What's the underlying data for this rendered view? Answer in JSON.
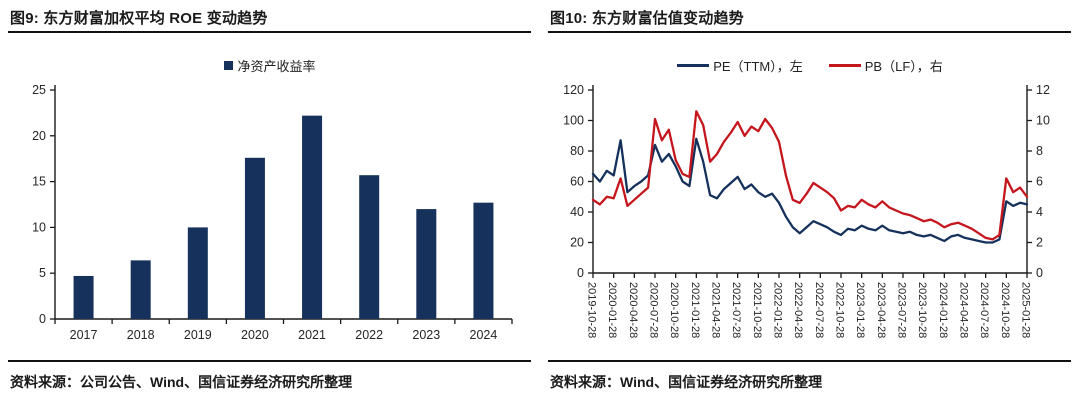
{
  "panels": [
    {
      "title": "图9: 东方财富加权平均 ROE 变动趋势",
      "source": "资料来源：公司公告、Wind、国信证券经济研究所整理"
    },
    {
      "title": "图10: 东方财富估值变动趋势",
      "source": "资料来源：Wind、国信证券经济研究所整理"
    }
  ],
  "colors": {
    "navy": "#16325C",
    "red": "#C5161D",
    "axis": "#1a1a1a"
  },
  "chart_data": [
    {
      "type": "bar",
      "title": "东方财富加权平均ROE变动趋势",
      "legend": [
        {
          "label": "净资产收益率",
          "color": "#16325C",
          "swatch": "square"
        }
      ],
      "categories": [
        "2017",
        "2018",
        "2019",
        "2020",
        "2021",
        "2022",
        "2023",
        "2024"
      ],
      "values": [
        4.7,
        6.4,
        10.0,
        17.6,
        22.2,
        15.7,
        12.0,
        12.7
      ],
      "xlabel": "",
      "ylabel": "",
      "ylim": [
        0,
        25
      ],
      "yticks": [
        0,
        5,
        10,
        15,
        20,
        25
      ],
      "grid": false,
      "legend_position": "top-center",
      "bar_color": "#16325C"
    },
    {
      "type": "line",
      "title": "东方财富估值变动趋势",
      "legend": [
        {
          "label": "PE（TTM），左",
          "color": "#16325C",
          "swatch": "line"
        },
        {
          "label": "PB（LF），右",
          "color": "#C5161D",
          "swatch": "line"
        }
      ],
      "grid": false,
      "legend_position": "top-center",
      "left_axis": {
        "ylim": [
          0,
          120
        ],
        "yticks": [
          0,
          20,
          40,
          60,
          80,
          100,
          120
        ]
      },
      "right_axis": {
        "ylim": [
          0,
          12
        ],
        "yticks": [
          0,
          2,
          4,
          6,
          8,
          10,
          12
        ]
      },
      "x_tick_labels": [
        "2019-10-28",
        "2020-01-28",
        "2020-04-28",
        "2020-07-28",
        "2020-10-28",
        "2021-01-28",
        "2021-04-28",
        "2021-07-28",
        "2021-10-28",
        "2022-01-28",
        "2022-04-28",
        "2022-07-28",
        "2022-10-28",
        "2023-01-28",
        "2023-04-28",
        "2023-07-28",
        "2023-10-28",
        "2024-01-28",
        "2024-04-28",
        "2024-07-28",
        "2024-10-28",
        "2025-01-28"
      ],
      "x_start": "2019-10-28",
      "x_interval": "monthly",
      "series": [
        {
          "name": "PE（TTM），左",
          "axis": "left",
          "color": "#16325C",
          "values": [
            65,
            60,
            67,
            64,
            87,
            53,
            57,
            60,
            64,
            84,
            73,
            78,
            70,
            60,
            57,
            88,
            73,
            51,
            49,
            55,
            59,
            63,
            55,
            58,
            53,
            50,
            52,
            46,
            37,
            30,
            26,
            30,
            34,
            32,
            30,
            27,
            25,
            29,
            28,
            31,
            29,
            28,
            31,
            28,
            27,
            26,
            27,
            25,
            24,
            25,
            23,
            21,
            24,
            25,
            23,
            22,
            21,
            20,
            20,
            22,
            47,
            44,
            46,
            45
          ]
        },
        {
          "name": "PB（LF），右",
          "axis": "right",
          "color": "#C5161D",
          "values": [
            4.8,
            4.5,
            5.0,
            4.9,
            6.2,
            4.4,
            4.8,
            5.2,
            5.6,
            10.1,
            8.7,
            9.4,
            7.4,
            6.5,
            6.3,
            10.6,
            9.7,
            7.3,
            7.8,
            8.6,
            9.2,
            9.9,
            9.0,
            9.6,
            9.3,
            10.1,
            9.5,
            8.6,
            6.4,
            4.8,
            4.6,
            5.2,
            5.9,
            5.6,
            5.3,
            4.9,
            4.1,
            4.4,
            4.3,
            4.8,
            4.5,
            4.3,
            4.7,
            4.3,
            4.1,
            3.9,
            3.8,
            3.6,
            3.4,
            3.5,
            3.3,
            3.0,
            3.2,
            3.3,
            3.1,
            2.9,
            2.6,
            2.3,
            2.2,
            2.5,
            6.2,
            5.3,
            5.6,
            5.0
          ]
        }
      ]
    }
  ]
}
